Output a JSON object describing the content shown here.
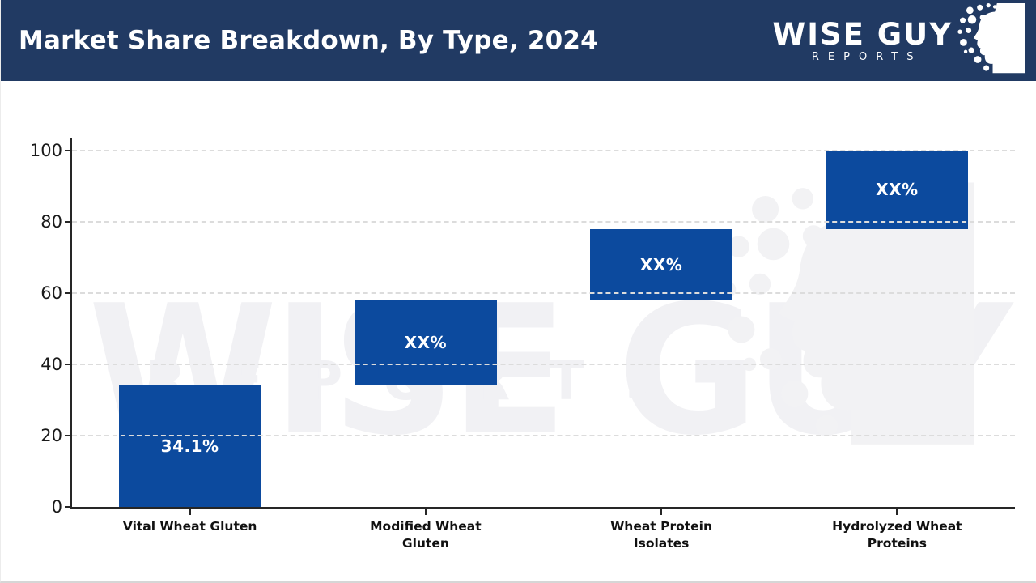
{
  "header": {
    "title": "Market Share Breakdown, By Type, 2024",
    "bg_color": "#213a63",
    "logo": {
      "line1": "WISE GUY",
      "line2": "REPORTS"
    }
  },
  "watermark": {
    "line1": "WISE GUY",
    "line2": "REPORTS"
  },
  "chart_data": {
    "type": "bar",
    "subtype": "waterfall",
    "title": "Market Share Breakdown, By Type, 2024",
    "categories": [
      "Vital Wheat Gluten",
      "Modified Wheat\nGluten",
      "Wheat Protein\nIsolates",
      "Hydrolyzed Wheat\nProteins"
    ],
    "segments": [
      {
        "label": "34.1%",
        "start": 0,
        "end": 34.1
      },
      {
        "label": "XX%",
        "start": 34.1,
        "end": 58
      },
      {
        "label": "XX%",
        "start": 58,
        "end": 78
      },
      {
        "label": "XX%",
        "start": 78,
        "end": 100
      }
    ],
    "yticks": [
      0,
      20,
      40,
      60,
      80,
      100
    ],
    "ylim": [
      0,
      103.5
    ],
    "xlabel": "",
    "ylabel": "",
    "legend": "none",
    "grid": "horizontal-dashed-above-bars",
    "bar_color": "#0c4a9e",
    "axis_color": "#262626",
    "grid_color": "#dcdcdc"
  }
}
